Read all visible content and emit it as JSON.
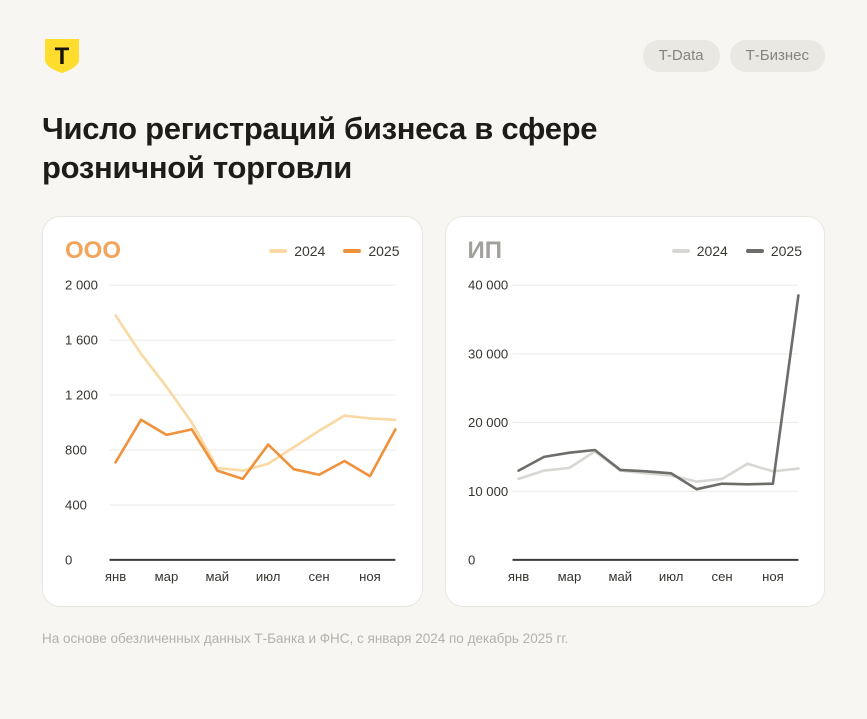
{
  "page": {
    "background": "#f7f6f3",
    "footer_note": "На основе обезличенных данных Т-Банка и ФНС, с января 2024 по декабрь 2025 гг."
  },
  "header": {
    "logo_letter": "T",
    "logo_color": "#FFDD2D",
    "badges": [
      {
        "label": "T-Data"
      },
      {
        "label": "Т-Бизнес"
      }
    ],
    "title": "Число регистраций бизнеса в сфере розничной торговли",
    "title_lines": [
      "Число регистраций бизнеса в сфере",
      "розничной торговли"
    ]
  },
  "chart_data": [
    {
      "type": "line",
      "title": "ООО",
      "title_color": "#f2a45c",
      "legend_position": "top-right",
      "grid": true,
      "points_per_series": 12,
      "x_labels": [
        "янв",
        "мар",
        "май",
        "июл",
        "сен",
        "ноя"
      ],
      "xtick_indices": [
        0,
        2,
        4,
        6,
        8,
        10
      ],
      "ylim": [
        0,
        2000
      ],
      "yticks": [
        {
          "value": 0,
          "label": "0"
        },
        {
          "value": 400,
          "label": "400"
        },
        {
          "value": 800,
          "label": "800"
        },
        {
          "value": 1200,
          "label": "1 200"
        },
        {
          "value": 1600,
          "label": "1 600"
        },
        {
          "value": 2000,
          "label": "2 000"
        }
      ],
      "series": [
        {
          "name": "2024",
          "color": "#fad9a4",
          "values": [
            1780,
            1500,
            1260,
            1000,
            670,
            650,
            700,
            820,
            940,
            1050,
            1030,
            1020
          ]
        },
        {
          "name": "2025",
          "color": "#f0913c",
          "values": [
            710,
            1020,
            910,
            950,
            650,
            590,
            840,
            660,
            620,
            720,
            610,
            950
          ]
        }
      ]
    },
    {
      "type": "line",
      "title": "ИП",
      "title_color": "#a1a09b",
      "legend_position": "top-right",
      "grid": true,
      "points_per_series": 12,
      "x_labels": [
        "янв",
        "мар",
        "май",
        "июл",
        "сен",
        "ноя"
      ],
      "xtick_indices": [
        0,
        2,
        4,
        6,
        8,
        10
      ],
      "ylim": [
        0,
        40000
      ],
      "yticks": [
        {
          "value": 0,
          "label": "0"
        },
        {
          "value": 10000,
          "label": "10 000"
        },
        {
          "value": 20000,
          "label": "20 000"
        },
        {
          "value": 30000,
          "label": "30 000"
        },
        {
          "value": 40000,
          "label": "40 000"
        }
      ],
      "series": [
        {
          "name": "2024",
          "color": "#d8d7d3",
          "values": [
            11800,
            13000,
            13400,
            15800,
            13000,
            12600,
            12300,
            11400,
            11800,
            14000,
            12900,
            13300
          ]
        },
        {
          "name": "2025",
          "color": "#6e6d6a",
          "values": [
            13000,
            15000,
            15600,
            16000,
            13100,
            12900,
            12600,
            10300,
            11100,
            11000,
            11100,
            38500
          ]
        }
      ]
    }
  ]
}
